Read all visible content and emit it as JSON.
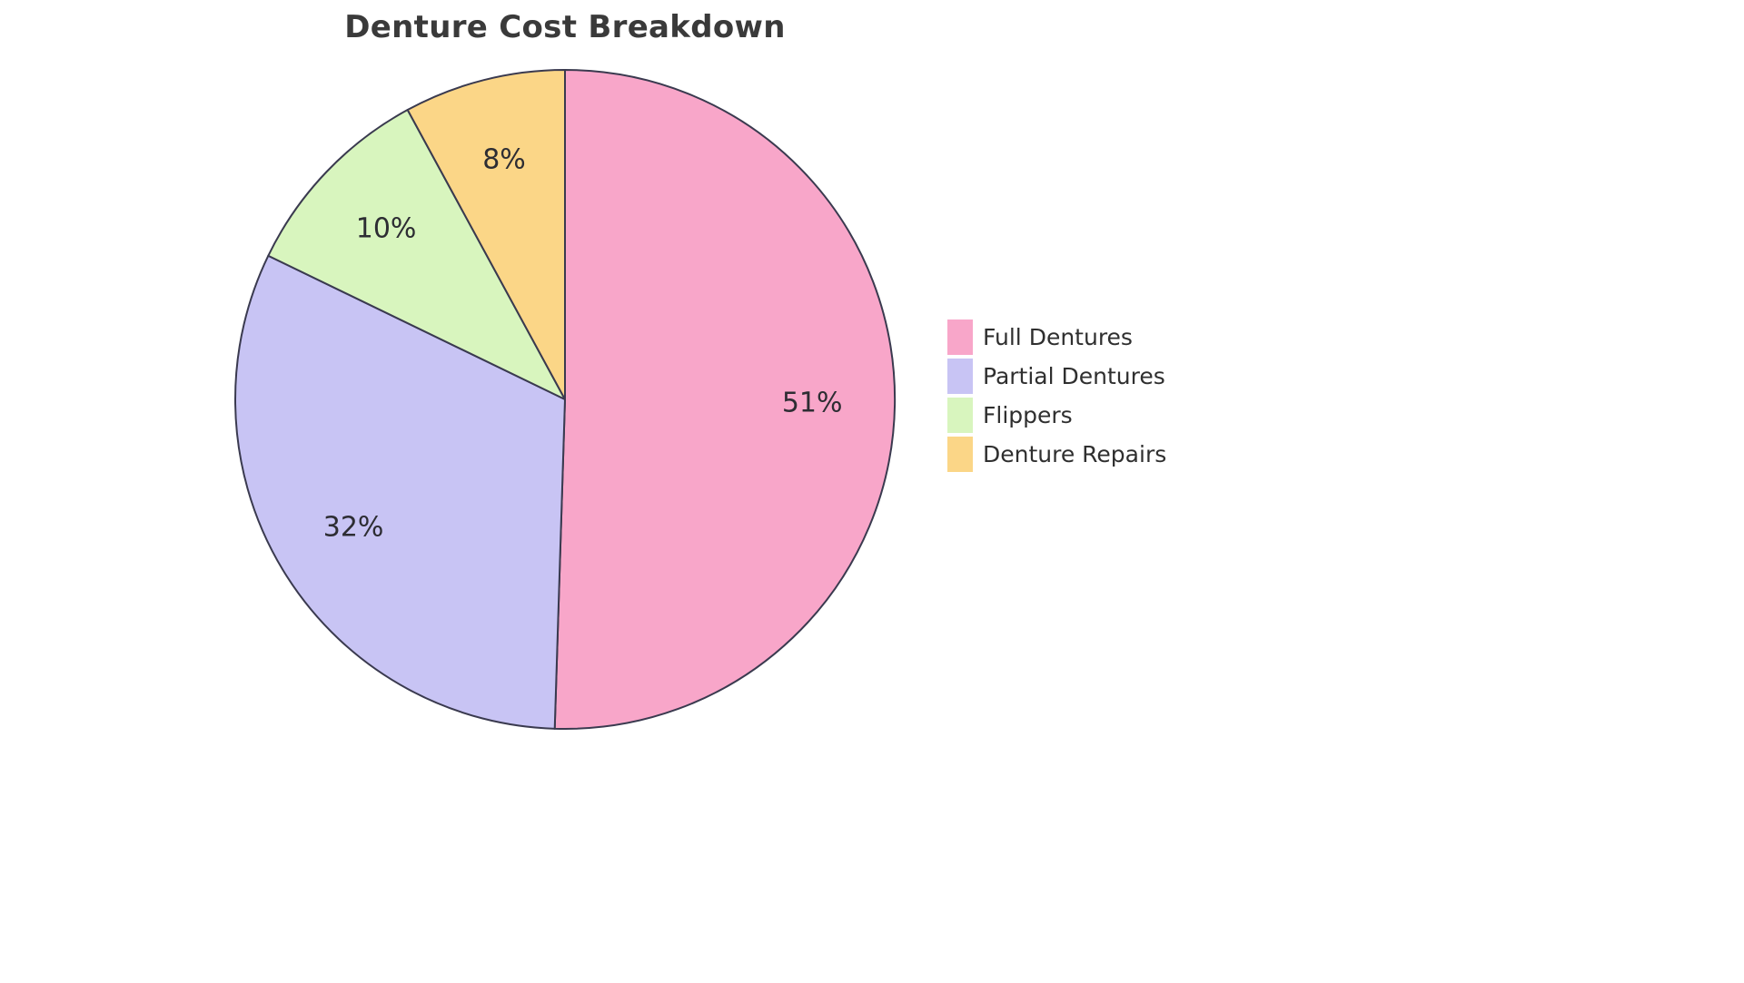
{
  "chart_data": {
    "type": "pie",
    "title": "Denture Cost Breakdown",
    "labels": [
      "Full Dentures",
      "Partial Dentures",
      "Flippers",
      "Denture Repairs"
    ],
    "values": [
      51,
      32,
      10,
      8
    ],
    "value_labels": [
      "51%",
      "32%",
      "10%",
      "8%"
    ],
    "colors": [
      "#F8A6C9",
      "#C8C4F4",
      "#D8F5BE",
      "#FBD687"
    ],
    "slice_outline_color": "#3A3A4F",
    "slice_label_color": "#2D2D33",
    "title_color": "#3A3A3A",
    "legend": {
      "position": "right",
      "entries": [
        "Full Dentures",
        "Partial Dentures",
        "Flippers",
        "Denture Repairs"
      ]
    },
    "layout_hints": {
      "start_angle": "top",
      "direction": "clockwise",
      "grid": false,
      "background": "#FFFFFF"
    }
  }
}
